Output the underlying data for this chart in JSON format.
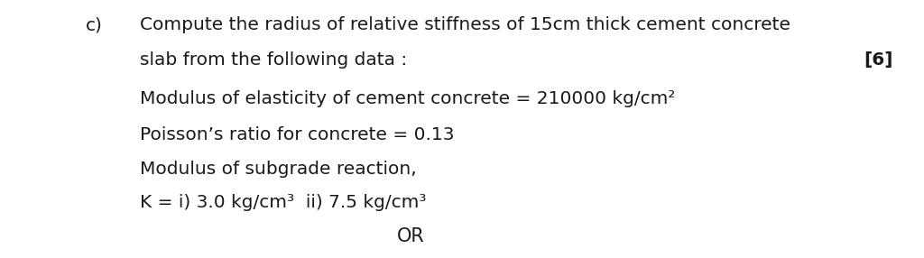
{
  "background_color": "#ffffff",
  "label_c": "c)",
  "line1": "Compute the radius of relative stiffness of 15cm thick cement concrete",
  "line2": "slab from the following data :",
  "marks": "[6]",
  "line3": "Modulus of elasticity of cement concrete = 210000 kg/cm²",
  "line4": "Poisson’s ratio for concrete = 0.13",
  "line5": "Modulus of subgrade reaction,",
  "line6": "K = i) 3.0 kg/cm³  ii) 7.5 kg/cm³",
  "line7": "OR",
  "text_color": "#1a1a1a",
  "font_size_main": 14.5,
  "font_size_marks": 14.5,
  "font_size_or": 15,
  "fig_width": 10.24,
  "fig_height": 2.86,
  "dpi": 100
}
